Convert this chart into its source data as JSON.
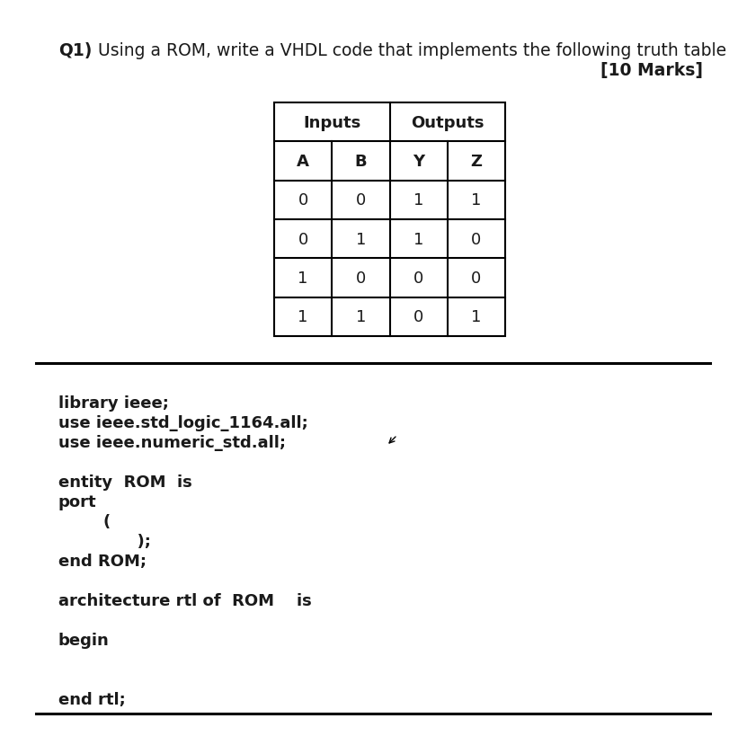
{
  "title_bold": "Q1)",
  "title_normal": " Using a ROM, write a VHDL code that implements the following truth table",
  "marks": "[10 Marks]",
  "table": {
    "header_row1_left": "Inputs",
    "header_row1_right": "Outputs",
    "header_row2": [
      "A",
      "B",
      "Y",
      "Z"
    ],
    "data_rows": [
      [
        "0",
        "0",
        "1",
        "1"
      ],
      [
        "0",
        "1",
        "1",
        "0"
      ],
      [
        "1",
        "0",
        "0",
        "0"
      ],
      [
        "1",
        "1",
        "0",
        "1"
      ]
    ]
  },
  "code_lines": [
    "library ieee;",
    "use ieee.std_logic_1164.all;",
    "use ieee.numeric_std.all;",
    "",
    "entity  ROM  is",
    "port",
    "        (",
    "              );",
    "end ROM;",
    "",
    "architecture rtl of  ROM    is",
    "",
    "begin",
    "",
    "",
    "end rtl;"
  ],
  "bg_color": "#ffffff",
  "text_color": "#1a1a1a",
  "font_size_title": 13.5,
  "font_size_table_header": 13,
  "font_size_table_data": 13,
  "font_size_code": 13
}
